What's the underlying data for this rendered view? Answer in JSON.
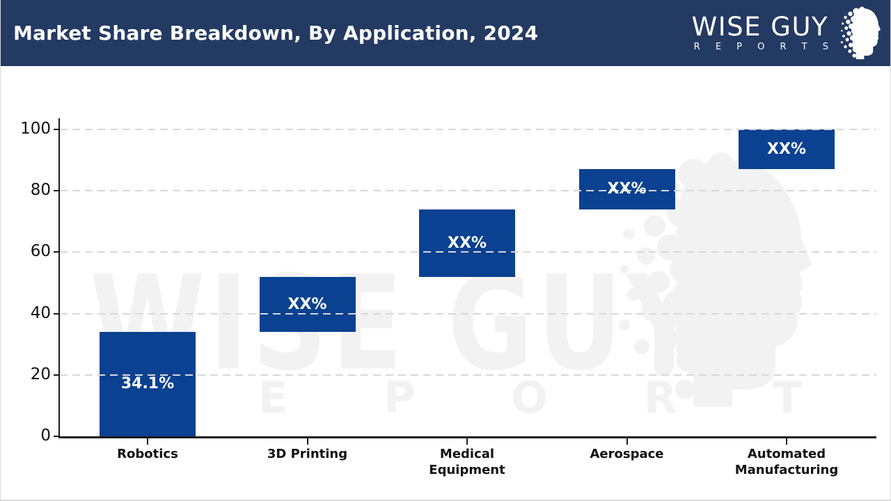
{
  "header": {
    "title": "Market Share Breakdown, By Application, 2024",
    "logo": {
      "wordmark": "WISE GUY",
      "subtext": "R E P O R T S"
    }
  },
  "watermark": {
    "line1": "WISE GUY",
    "line2": "R E P O R T S"
  },
  "colors": {
    "header_bg": "#233a63",
    "bar": "#0b4191",
    "bar_label": "#ffffff",
    "grid": "#d8d8d8",
    "axis": "#1a1a1a",
    "watermark": "#f2f2f2"
  },
  "chart_data": {
    "type": "bar",
    "variant": "floating-waterfall",
    "title": "Market Share Breakdown, By Application, 2024",
    "categories": [
      "Robotics",
      "3D Printing",
      "Medical Equipment",
      "Aerospace",
      "Automated Manufacturing"
    ],
    "segments": [
      {
        "category": "Robotics",
        "start": 0,
        "end": 34.1,
        "label": "34.1%"
      },
      {
        "category": "3D Printing",
        "start": 34.1,
        "end": 52,
        "label": "XX%"
      },
      {
        "category": "Medical Equipment",
        "start": 52,
        "end": 74,
        "label": "XX%"
      },
      {
        "category": "Aerospace",
        "start": 74,
        "end": 87,
        "label": "XX%"
      },
      {
        "category": "Automated Manufacturing",
        "start": 87,
        "end": 100,
        "label": "XX%"
      }
    ],
    "xlabel": "",
    "ylabel": "",
    "ylim": [
      0,
      100
    ],
    "yticks": [
      0,
      20,
      40,
      60,
      80,
      100
    ],
    "grid": "horizontal-dashed",
    "legend": false
  }
}
